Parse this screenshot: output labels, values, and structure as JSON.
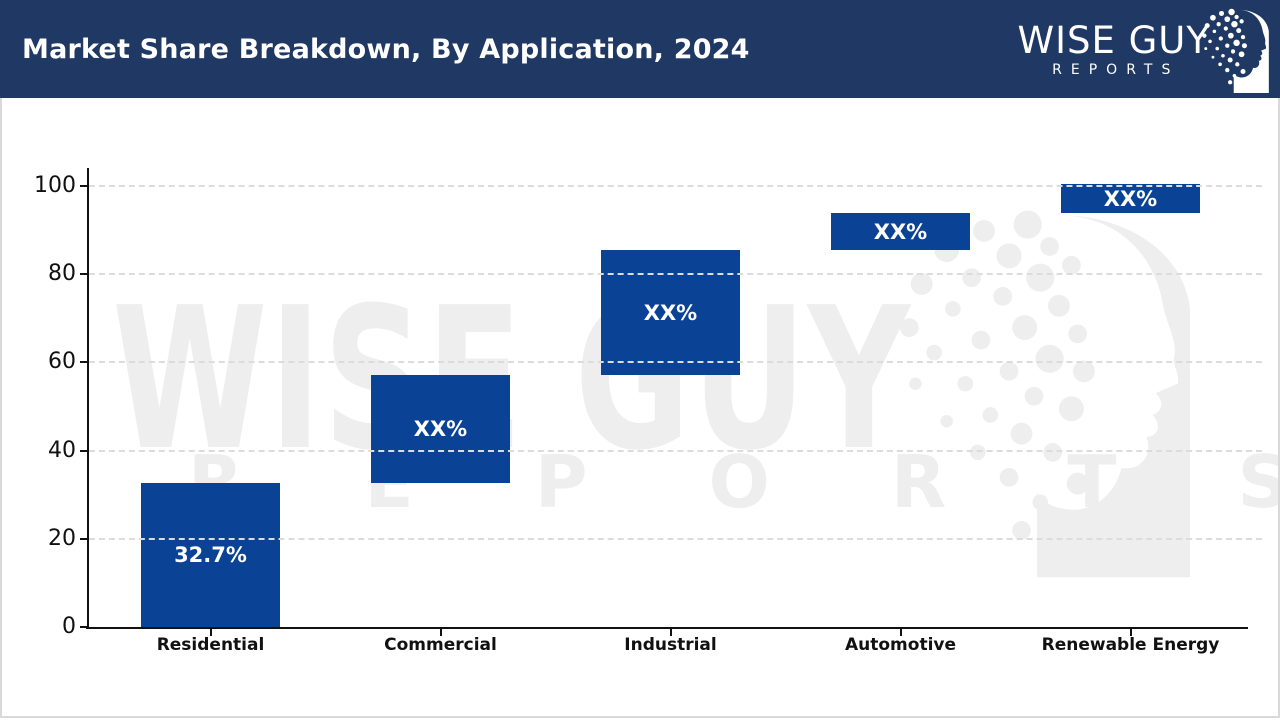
{
  "header": {
    "title": "Market Share Breakdown, By Application, 2024",
    "logo": {
      "name": "WISE GUY",
      "sub": "REPORTS"
    }
  },
  "watermark": {
    "line1": "WISE GUY",
    "line2": "R E P O R T S"
  },
  "chart_data": {
    "type": "bar",
    "variant": "waterfall",
    "title": "Market Share Breakdown, By Application, 2024",
    "categories": [
      "Residential",
      "Commercial",
      "Industrial",
      "Automotive",
      "Renewable Energy"
    ],
    "segments": [
      {
        "category": "Residential",
        "start": 0,
        "end": 32.7,
        "label": "32.7%"
      },
      {
        "category": "Commercial",
        "start": 32.7,
        "end": 57.2,
        "label": "XX%"
      },
      {
        "category": "Industrial",
        "start": 57.2,
        "end": 85.4,
        "label": "XX%"
      },
      {
        "category": "Automotive",
        "start": 85.4,
        "end": 93.9,
        "label": "XX%"
      },
      {
        "category": "Renewable Energy",
        "start": 93.9,
        "end": 100.4,
        "label": "XX%"
      }
    ],
    "xlabel": "",
    "ylabel": "",
    "yticks": [
      0,
      20,
      40,
      60,
      80,
      100
    ],
    "ylim": [
      0,
      105
    ],
    "grid": "horizontal-dashed",
    "legend": null,
    "bar_label_values_hidden": "XX% placeholders except Residential",
    "bar_color": "#0a4296",
    "bar_label_color": "#ffffff"
  },
  "colors": {
    "header_bg": "#1f3864",
    "bar": "#0a4296",
    "grid": "#dcdcdc",
    "axis": "#111111",
    "watermark": "#eeeeee",
    "frame": "#d9d9d9",
    "canvas": "#ffffff"
  }
}
